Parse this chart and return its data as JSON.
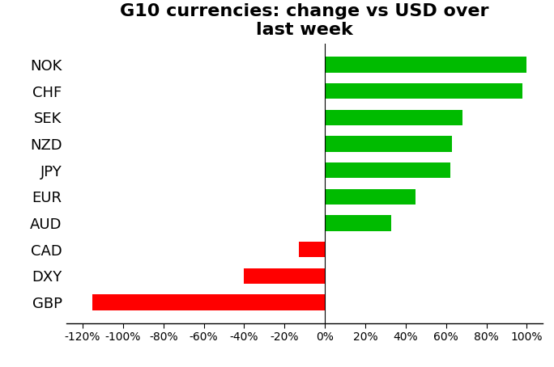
{
  "currencies": [
    "NOK",
    "CHF",
    "SEK",
    "NZD",
    "JPY",
    "EUR",
    "AUD",
    "CAD",
    "DXY",
    "GBP"
  ],
  "values": [
    1.0,
    0.98,
    0.68,
    0.63,
    0.62,
    0.45,
    0.33,
    -0.13,
    -0.4,
    -1.15
  ],
  "bar_colors_positive": "#00bb00",
  "bar_colors_negative": "#ff0000",
  "title": "G10 currencies: change vs USD over\nlast week",
  "xlim": [
    -1.28,
    1.08
  ],
  "xtick_values": [
    -1.2,
    -1.0,
    -0.8,
    -0.6,
    -0.4,
    -0.2,
    0.0,
    0.2,
    0.4,
    0.6,
    0.8,
    1.0
  ],
  "title_fontsize": 16,
  "ylabel_fontsize": 13,
  "tick_fontsize": 10,
  "background_color": "#ffffff",
  "bar_height": 0.6
}
